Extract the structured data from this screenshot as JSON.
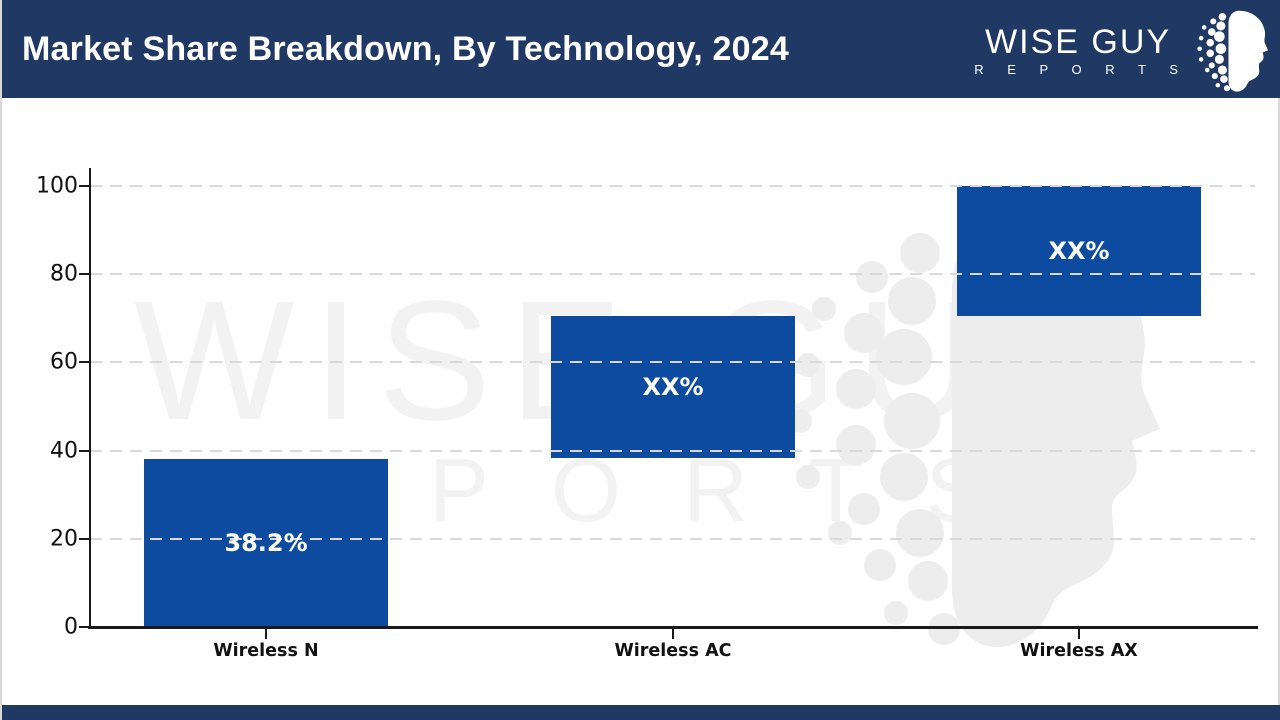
{
  "header": {
    "title": "Market Share Breakdown, By Technology, 2024",
    "logo": {
      "wordmark": "WISE GUY",
      "subtext": "R E P O R T S"
    }
  },
  "watermark": {
    "line1": "WISE GUY",
    "line2": "REPORTS"
  },
  "chart_data": {
    "type": "bar",
    "subtype": "floating-segment-waterfall",
    "title": "Market Share Breakdown, By Technology, 2024",
    "categories": [
      "Wireless N",
      "Wireless AC",
      "Wireless AX"
    ],
    "segments": [
      {
        "category": "Wireless N",
        "start": 0,
        "end": 38.2,
        "label": "38.2%"
      },
      {
        "category": "Wireless AC",
        "start": 38.3,
        "end": 70.5,
        "label": "XX%"
      },
      {
        "category": "Wireless AX",
        "start": 70.5,
        "end": 100,
        "label": "XX%"
      }
    ],
    "xlabel": "",
    "ylabel": "",
    "y_ticks": [
      0,
      20,
      40,
      60,
      80,
      100
    ],
    "ylim": [
      0,
      106
    ],
    "grid": {
      "horizontal": true,
      "style": "dashed"
    },
    "legend": "none",
    "bar_color": "#0d4ba0",
    "bar_label_color": "#ffffff"
  },
  "colors": {
    "header_bg": "#1f3864",
    "footer_bg": "#1f3864",
    "bar": "#0d4ba0",
    "gridline": "#d9d9d9",
    "axis": "#1a1a1a",
    "watermark": "#f2f2f2"
  }
}
